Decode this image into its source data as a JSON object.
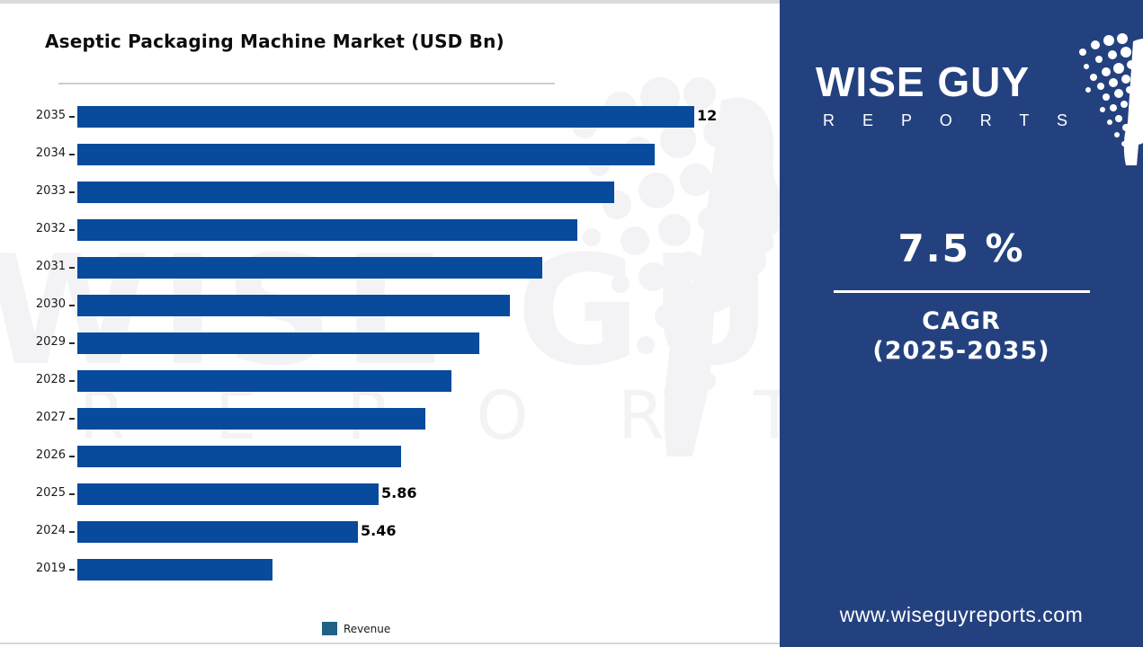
{
  "title": "Aseptic Packaging Machine Market (USD Bn)",
  "legend": {
    "label": "Revenue",
    "swatch_color": "#1f6286"
  },
  "watermark": {
    "line1": "WISE GUY",
    "line2": "R E P O R T S"
  },
  "panel": {
    "logo_line1": "WISE GUY",
    "logo_line2": "R E P O R T S",
    "cagr_value": "7.5 %",
    "cagr_label1": "CAGR",
    "cagr_label2": "(2025-2035)",
    "website": "www.wiseguyreports.com",
    "bg_color": "#24417f"
  },
  "colors": {
    "bar": "#084a9c",
    "top_strip": "#d9dadc",
    "title_rule": "#cdcdcd",
    "panel_text": "#ffffff"
  },
  "chart_data": {
    "type": "bar",
    "orientation": "horizontal",
    "title": "Aseptic Packaging Machine Market (USD Bn)",
    "xlabel": "",
    "ylabel": "",
    "xlim": [
      0,
      12.6
    ],
    "grid": false,
    "legend_position": "bottom-center",
    "series_name": "Revenue",
    "bar_color": "#084a9c",
    "categories": [
      "2035",
      "2034",
      "2033",
      "2032",
      "2031",
      "2030",
      "2029",
      "2028",
      "2027",
      "2026",
      "2025",
      "2024",
      "2019"
    ],
    "values": [
      12,
      11.23,
      10.45,
      9.72,
      9.04,
      8.41,
      7.82,
      7.28,
      6.77,
      6.3,
      5.86,
      5.46,
      3.8
    ],
    "data_labels": {
      "2035": "12",
      "2025": "5.86",
      "2024": "5.46"
    }
  }
}
